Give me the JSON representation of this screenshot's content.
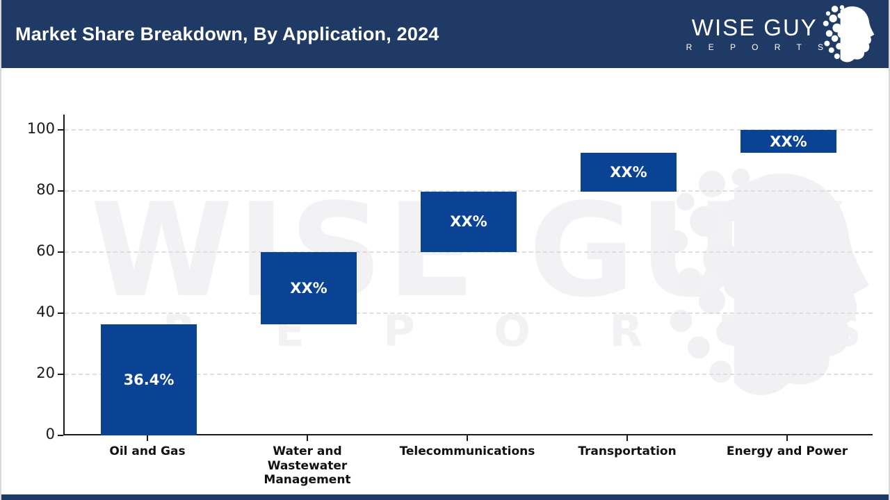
{
  "header": {
    "title": "Market Share Breakdown, By Application, 2024",
    "logo_line1": "WISE GUY",
    "logo_line2": "R E P O R T S",
    "bg_color": "#203a66"
  },
  "watermark": {
    "line1": "WISE GUY",
    "line2": "R E P O R T S"
  },
  "chart_data": {
    "type": "bar",
    "subtype": "waterfall-progression",
    "title": "Market Share Breakdown, By Application, 2024",
    "categories": [
      "Oil and Gas",
      "Water and Wastewater Management",
      "Telecommunications",
      "Transportation",
      "Energy and Power"
    ],
    "segments": [
      {
        "category": "Oil and Gas",
        "lines": [
          "Oil and Gas"
        ],
        "start": 0,
        "end": 36.4,
        "label": "36.4%"
      },
      {
        "category": "Water and Wastewater Management",
        "lines": [
          "Water and",
          "Wastewater",
          "Management"
        ],
        "start": 36.4,
        "end": 60,
        "label": "XX%"
      },
      {
        "category": "Telecommunications",
        "lines": [
          "Telecommunications"
        ],
        "start": 60,
        "end": 79.8,
        "label": "XX%"
      },
      {
        "category": "Transportation",
        "lines": [
          "Transportation"
        ],
        "start": 79.8,
        "end": 92.4,
        "label": "XX%"
      },
      {
        "category": "Energy and Power",
        "lines": [
          "Energy and Power"
        ],
        "start": 92.4,
        "end": 100,
        "label": "XX%"
      }
    ],
    "yticks": [
      0,
      20,
      40,
      60,
      80,
      100
    ],
    "ylim": [
      0,
      105
    ],
    "grid": true,
    "bar_color": "#0a4294",
    "grid_color": "#dedede",
    "axis_color": "#1a1a1a",
    "label_color": "#ffffff"
  }
}
